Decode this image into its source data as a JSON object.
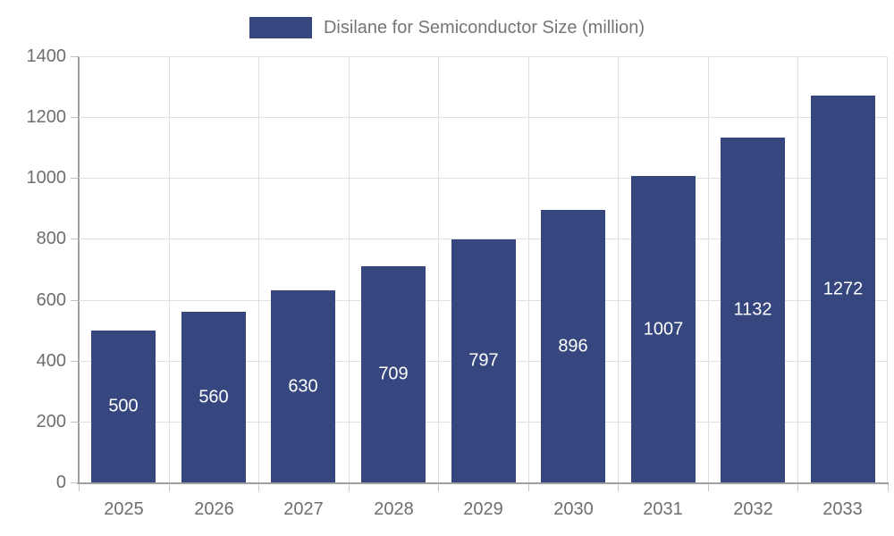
{
  "legend": {
    "label": "Disilane for Semiconductor Size (million)",
    "swatch_color": "#364780"
  },
  "chart_data": {
    "type": "bar",
    "title": "Disilane for Semiconductor Size (million)",
    "categories": [
      "2025",
      "2026",
      "2027",
      "2028",
      "2029",
      "2030",
      "2031",
      "2032",
      "2033"
    ],
    "values": [
      500,
      560,
      630,
      709,
      797,
      896,
      1007,
      1132,
      1272
    ],
    "xlabel": "",
    "ylabel": "",
    "ylim": [
      0,
      1400
    ],
    "ytick_step": 200,
    "ytick_labels": [
      "0",
      "200",
      "400",
      "600",
      "800",
      "1000",
      "1200",
      "1400"
    ],
    "grid": true,
    "legend_position": "top",
    "bar_color": "#364780",
    "value_label_color": "#ffffff",
    "axis_label_color": "#6e6e6e",
    "grid_color": "#e0e0e0",
    "axis_line_color": "#9e9e9e"
  }
}
